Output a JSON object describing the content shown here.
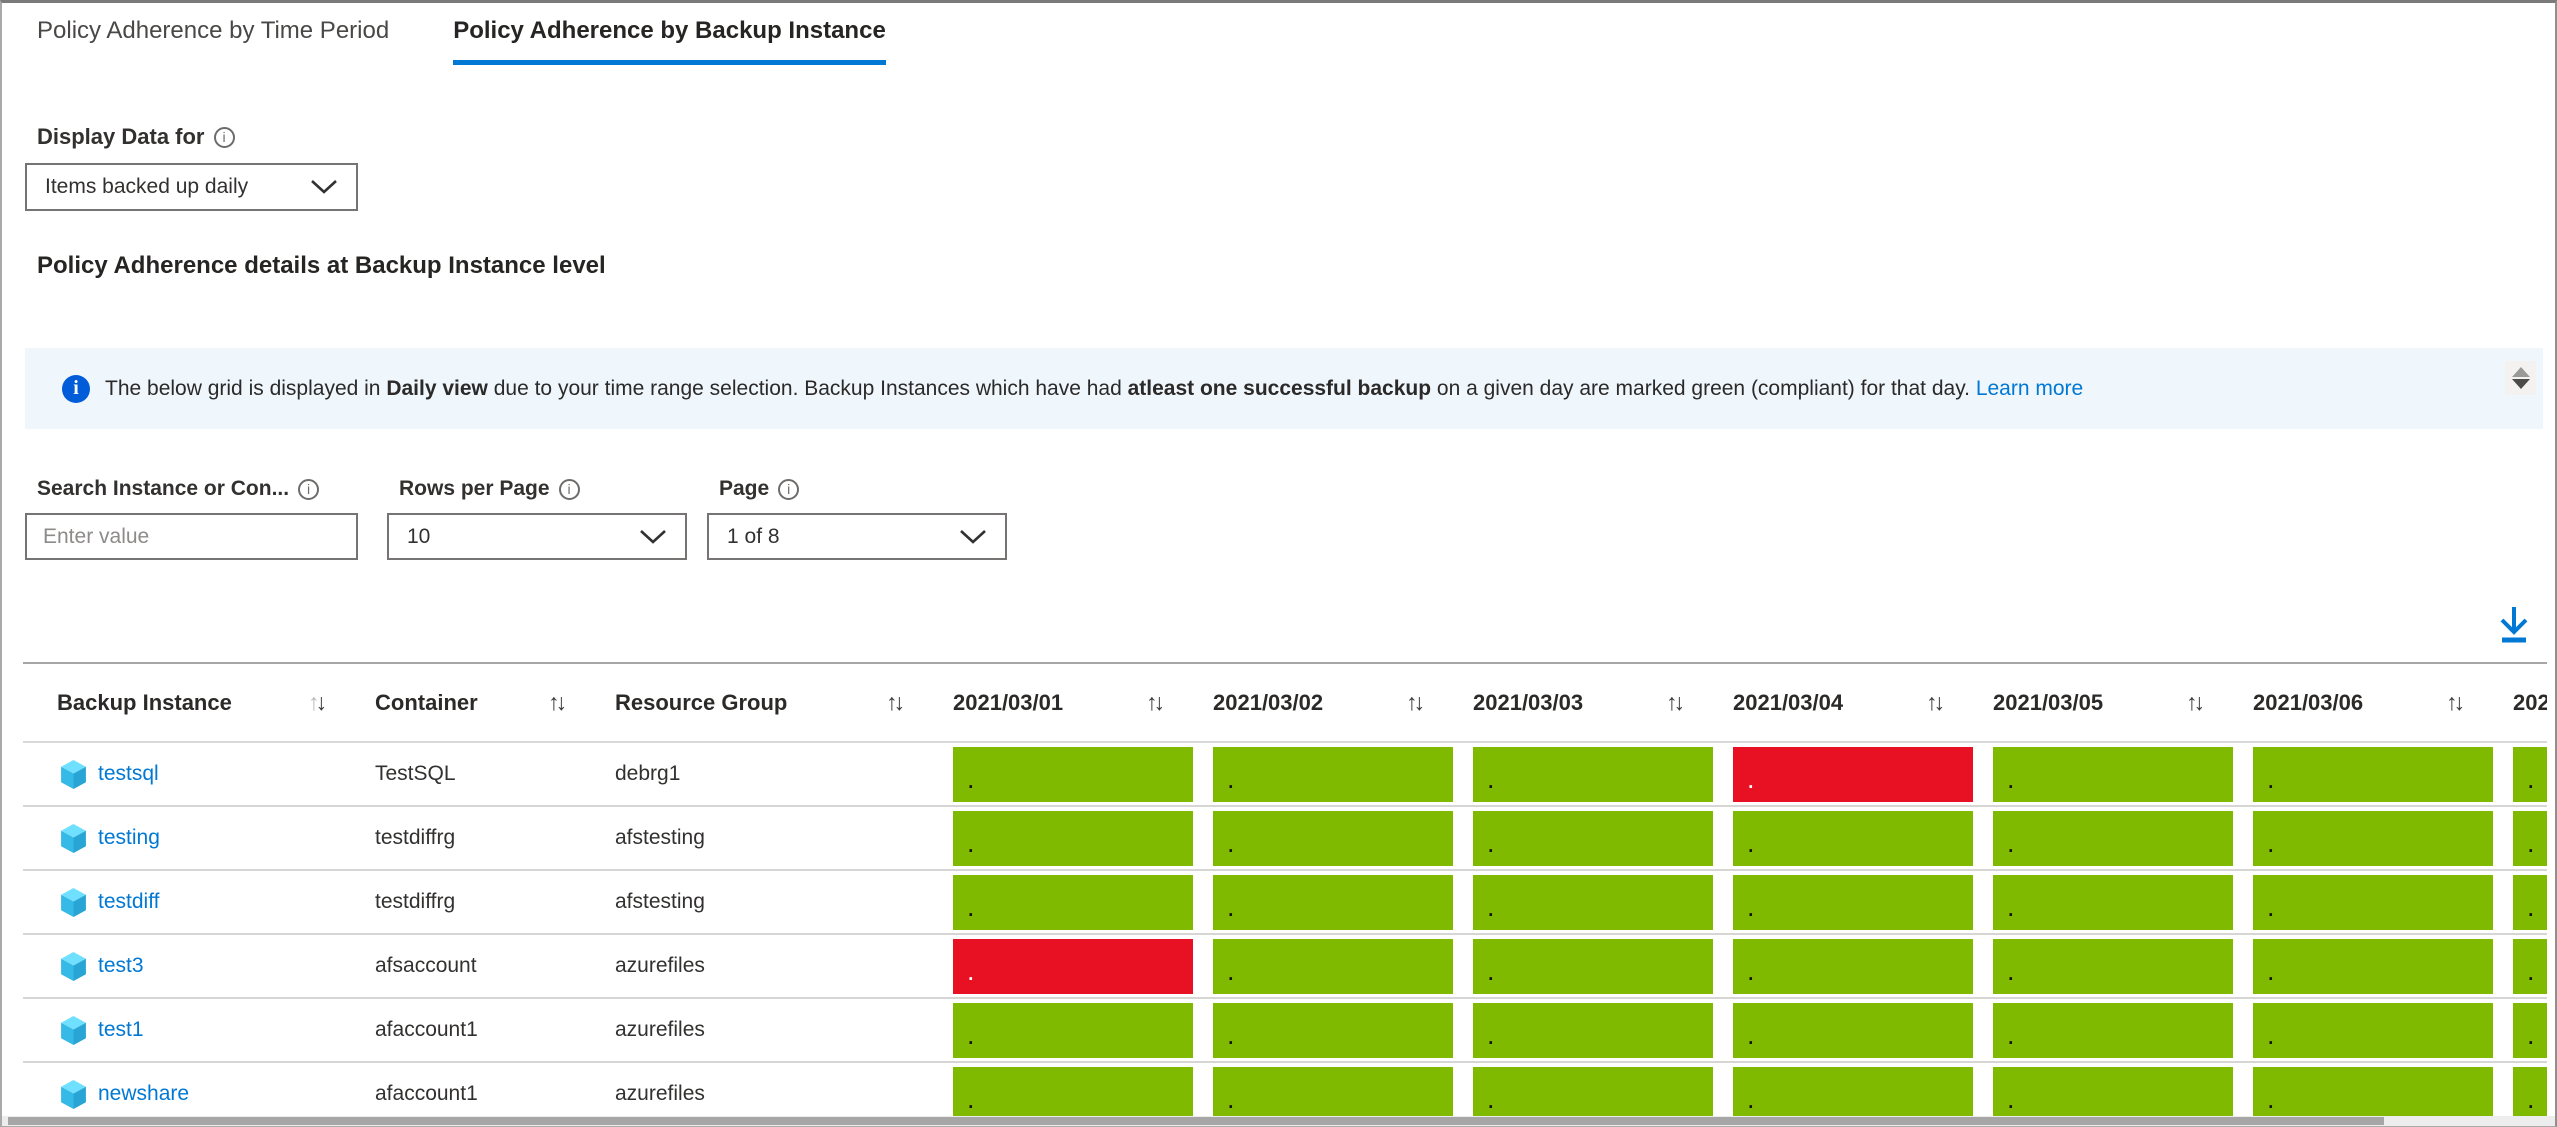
{
  "tabs": {
    "time_period": "Policy Adherence by Time Period",
    "backup_instance": "Policy Adherence by Backup Instance"
  },
  "display_data": {
    "label": "Display Data for",
    "value": "Items backed up daily"
  },
  "section_title": "Policy Adherence details at Backup Instance level",
  "banner": {
    "part1": "The below grid is displayed in ",
    "bold1": "Daily view",
    "part2": " due to your time range selection. Backup Instances which have had ",
    "bold2": "atleast one successful backup",
    "part3": " on a given day are marked green (compliant) for that day. ",
    "link": "Learn more"
  },
  "filters": {
    "search": {
      "label": "Search Instance or Con...",
      "placeholder": "Enter value"
    },
    "rows_per_page": {
      "label": "Rows per Page",
      "value": "10"
    },
    "page": {
      "label": "Page",
      "value": "1 of 8"
    }
  },
  "table": {
    "columns": [
      "Backup Instance",
      "Container",
      "Resource Group",
      "2021/03/01",
      "2021/03/02",
      "2021/03/03",
      "2021/03/04",
      "2021/03/05",
      "2021/03/06",
      "202"
    ],
    "cell_marker": ".",
    "rows": [
      {
        "instance": "testsql",
        "container": "TestSQL",
        "resource_group": "debrg1",
        "days": [
          "green",
          "green",
          "green",
          "red",
          "green",
          "green",
          "green"
        ]
      },
      {
        "instance": "testing",
        "container": "testdiffrg",
        "resource_group": "afstesting",
        "days": [
          "green",
          "green",
          "green",
          "green",
          "green",
          "green",
          "green"
        ]
      },
      {
        "instance": "testdiff",
        "container": "testdiffrg",
        "resource_group": "afstesting",
        "days": [
          "green",
          "green",
          "green",
          "green",
          "green",
          "green",
          "green"
        ]
      },
      {
        "instance": "test3",
        "container": "afsaccount",
        "resource_group": "azurefiles",
        "days": [
          "red",
          "green",
          "green",
          "green",
          "green",
          "green",
          "green"
        ]
      },
      {
        "instance": "test1",
        "container": "afaccount1",
        "resource_group": "azurefiles",
        "days": [
          "green",
          "green",
          "green",
          "green",
          "green",
          "green",
          "green"
        ]
      },
      {
        "instance": "newshare",
        "container": "afaccount1",
        "resource_group": "azurefiles",
        "days": [
          "green",
          "green",
          "green",
          "green",
          "green",
          "green",
          "green"
        ]
      }
    ]
  },
  "colors": {
    "compliant_green": "#7FBA00",
    "noncompliant_red": "#E81123",
    "accent_blue": "#0078D4",
    "banner_bg": "#EFF6FC"
  }
}
